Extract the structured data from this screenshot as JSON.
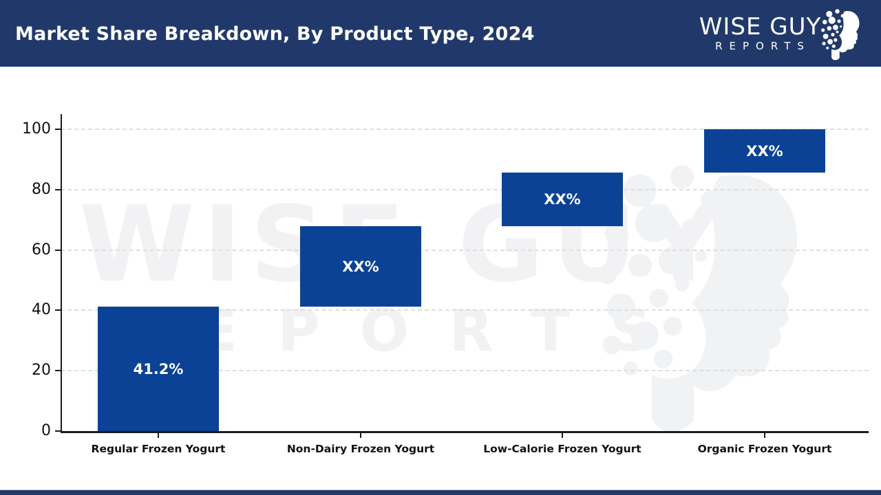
{
  "header": {
    "title": "Market Share Breakdown, By Product Type, 2024",
    "logo": {
      "line1": "WISE GUY",
      "line2": "REPORTS"
    }
  },
  "watermark": {
    "line1": "WISE GUY",
    "line2": "REPORTS"
  },
  "chart_data": {
    "type": "bar",
    "subtype": "waterfall",
    "title": "Market Share Breakdown, By Product Type, 2024",
    "categories": [
      "Regular Frozen Yogurt",
      "Non-Dairy Frozen Yogurt",
      "Low-Calorie Frozen Yogurt",
      "Organic Frozen Yogurt"
    ],
    "segments": [
      {
        "category": "Regular Frozen Yogurt",
        "start": 0,
        "end": 41.2,
        "label": "41.2%"
      },
      {
        "category": "Non-Dairy Frozen Yogurt",
        "start": 41.2,
        "end": 67.9,
        "label": "XX%"
      },
      {
        "category": "Low-Calorie Frozen Yogurt",
        "start": 67.9,
        "end": 85.6,
        "label": "XX%"
      },
      {
        "category": "Organic Frozen Yogurt",
        "start": 85.6,
        "end": 100,
        "label": "XX%"
      }
    ],
    "yticks": [
      0,
      20,
      40,
      60,
      80,
      100
    ],
    "ylim": [
      0,
      105
    ],
    "xlabel": "",
    "ylabel": "",
    "grid": "horizontal-dashed",
    "legend": "none"
  },
  "colors": {
    "header_bg": "#21396a",
    "bar": "#0b4295",
    "bar_label": "#ffffff",
    "grid": "#dedede",
    "axis": "#1a1a1a",
    "watermark": "#f2f2f4"
  }
}
